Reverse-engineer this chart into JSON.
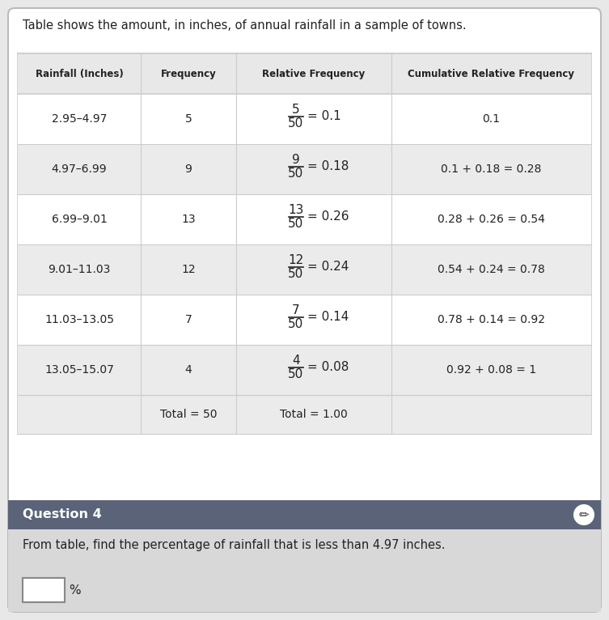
{
  "title": "Table shows the amount, in inches, of annual rainfall in a sample of towns.",
  "headers": [
    "Rainfall (Inches)",
    "Frequency",
    "Relative Frequency",
    "Cumulative Relative Frequency"
  ],
  "rows": [
    [
      "2.95–4.97",
      "5",
      "5|50|0.1",
      "0.1"
    ],
    [
      "4.97–6.99",
      "9",
      "9|50|0.18",
      "0.1 + 0.18 = 0.28"
    ],
    [
      "6.99–9.01",
      "13",
      "13|50|0.26",
      "0.28 + 0.26 = 0.54"
    ],
    [
      "9.01–11.03",
      "12",
      "12|50|0.24",
      "0.54 + 0.24 = 0.78"
    ],
    [
      "11.03–13.05",
      "7",
      "7|50|0.14",
      "0.78 + 0.14 = 0.92"
    ],
    [
      "13.05–15.07",
      "4",
      "4|50|0.08",
      "0.92 + 0.08 = 1"
    ]
  ],
  "total_row": [
    "",
    "Total = 50",
    "Total = 1.00",
    ""
  ],
  "question_label": "Question 4",
  "question_text": "From table, find the percentage of rainfall that is less than 4.97 inches.",
  "question_bar_color": "#5a6378",
  "bg_color": "#e8e8e8",
  "outer_box_color": "#ffffff",
  "table_header_bg": "#e8e8e8",
  "cell_bg_white": "#ffffff",
  "cell_bg_gray": "#ebebeb",
  "border_color": "#cccccc",
  "text_color": "#222222",
  "header_fontsize": 8.5,
  "cell_fontsize": 10,
  "title_fontsize": 10.5,
  "q_section_bg": "#d8d8d8",
  "pencil_circle_color": "#ffffff"
}
